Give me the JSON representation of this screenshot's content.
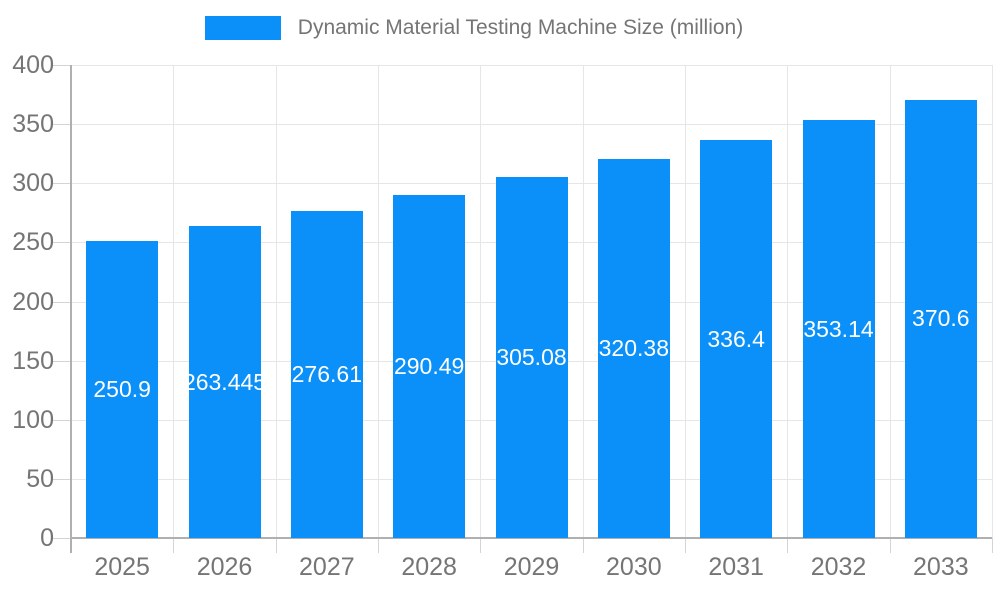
{
  "chart_data": {
    "type": "bar",
    "title": "Dynamic Material Testing Machine Size (million)",
    "categories": [
      "2025",
      "2026",
      "2027",
      "2028",
      "2029",
      "2030",
      "2031",
      "2032",
      "2033"
    ],
    "values": [
      250.9,
      263.445,
      276.61,
      290.49,
      305.08,
      320.38,
      336.4,
      353.14,
      370.6
    ],
    "labels": [
      "250.9",
      "263.445",
      "276.61",
      "290.49",
      "305.08",
      "320.38",
      "336.4",
      "353.14",
      "370.6"
    ],
    "yticks": [
      "0",
      "50",
      "100",
      "150",
      "200",
      "250",
      "300",
      "350",
      "400"
    ],
    "ytick_values": [
      0,
      50,
      100,
      150,
      200,
      250,
      300,
      350,
      400
    ],
    "ylim": [
      0,
      400
    ],
    "xlabel": "",
    "ylabel": "",
    "grid": true,
    "legend_position": "top-center",
    "label_position": "inside-middle",
    "colors": {
      "bar": "#0a90f8",
      "value_label": "#ffffff",
      "axis_label": "#757575",
      "title": "#757575",
      "gridline": "#e6e6e6",
      "axis_line": "#b0b0b0",
      "tick": "#d4d4d4",
      "background": "#ffffff"
    }
  }
}
